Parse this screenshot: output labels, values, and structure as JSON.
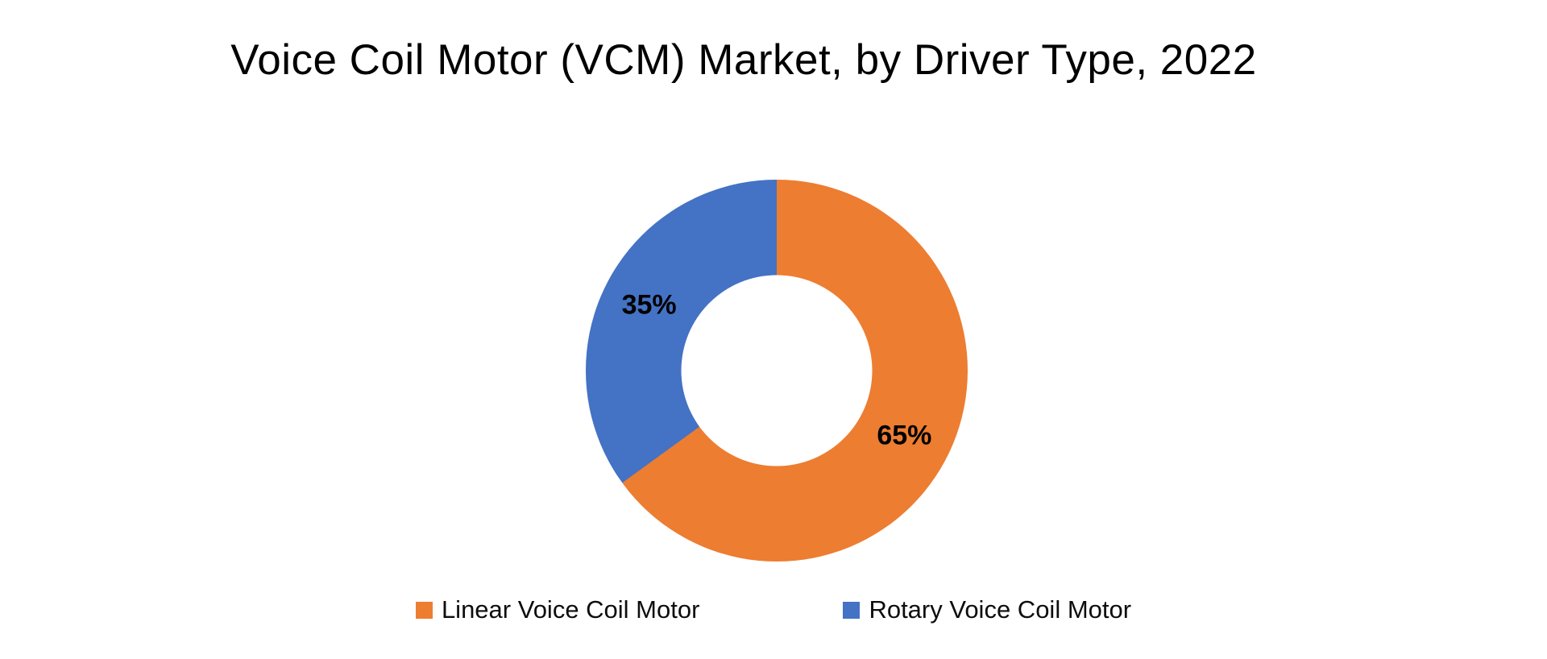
{
  "chart_data": {
    "type": "pie",
    "subtype": "donut",
    "title": "Voice Coil Motor (VCM) Market, by Driver Type, 2022",
    "hole_ratio": 0.5,
    "start_angle_deg": 0,
    "direction": "clockwise",
    "legend_position": "bottom",
    "background": "#FFFFFF",
    "label_color": "#000000",
    "series": [
      {
        "name": "Linear Voice Coil Motor",
        "value": 65,
        "value_label": "65%",
        "color": "#ED7D31"
      },
      {
        "name": "Rotary Voice Coil Motor",
        "value": 35,
        "value_label": "35%",
        "color": "#4472C4"
      }
    ]
  }
}
